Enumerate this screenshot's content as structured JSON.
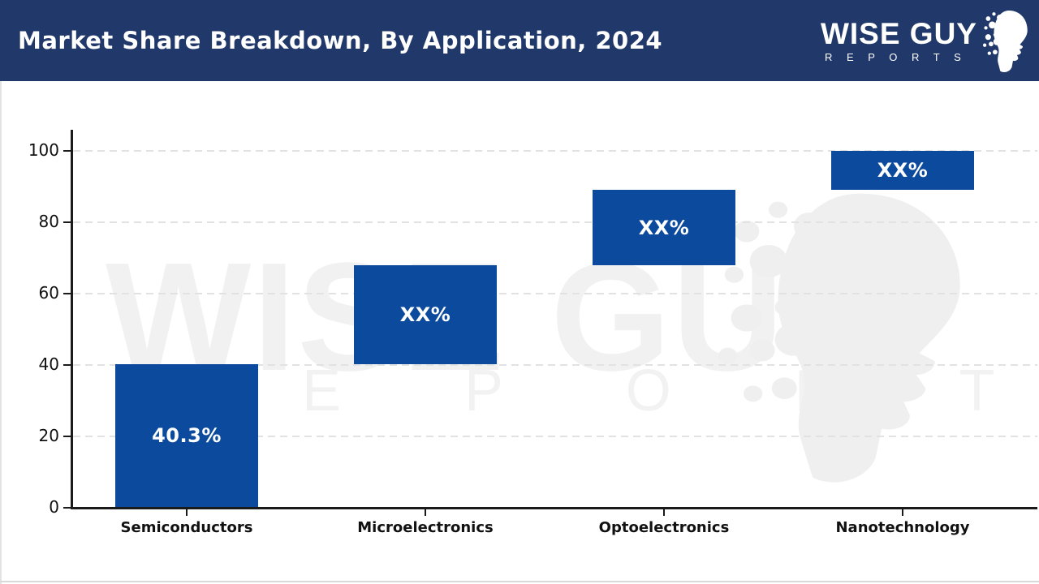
{
  "header": {
    "title": "Market Share Breakdown, By Application, 2024",
    "background_color": "#20386a",
    "logo": {
      "line1": "WISE GUY",
      "line2": "R E P O R T S",
      "head_icon": "dotted-face-profile"
    }
  },
  "watermark": {
    "line1": "WISE GUY",
    "line2": "R E P O R T S",
    "head_icon": "dotted-face-profile"
  },
  "chart_data": {
    "type": "bar",
    "subtype": "floating-waterfall",
    "title": "Market Share Breakdown, By Application, 2024",
    "xlabel": "",
    "ylabel": "",
    "categories": [
      "Semiconductors",
      "Microelectronics",
      "Optoelectronics",
      "Nanotechnology"
    ],
    "segments": [
      {
        "category": "Semiconductors",
        "start": 0,
        "end": 40.3,
        "label": "40.3%"
      },
      {
        "category": "Microelectronics",
        "start": 40.3,
        "end": 68,
        "label": "XX%"
      },
      {
        "category": "Optoelectronics",
        "start": 68,
        "end": 89,
        "label": "XX%"
      },
      {
        "category": "Nanotechnology",
        "start": 89,
        "end": 100,
        "label": "XX%"
      }
    ],
    "ylim": [
      0,
      100
    ],
    "yticks": [
      0,
      20,
      40,
      60,
      80,
      100
    ],
    "grid": "horizontal-dashed",
    "legend": "none",
    "bar_color": "#0c4a9d",
    "bar_label_color": "#ffffff",
    "axis_color": "#1a1a1a",
    "gridline_color": "#e2e2e2",
    "values_unit": "%"
  }
}
